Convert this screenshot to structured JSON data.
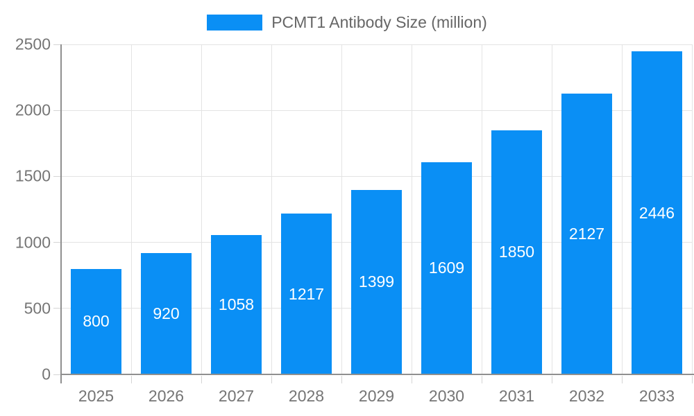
{
  "chart_data": {
    "type": "bar",
    "title": "PCMT1 Antibody Size (million)",
    "categories": [
      "2025",
      "2026",
      "2027",
      "2028",
      "2029",
      "2030",
      "2031",
      "2032",
      "2033"
    ],
    "values": [
      800,
      920,
      1058,
      1217,
      1399,
      1609,
      1850,
      2127,
      2446
    ],
    "series": [
      {
        "name": "PCMT1 Antibody Size (million)",
        "values": [
          800,
          920,
          1058,
          1217,
          1399,
          1609,
          1850,
          2127,
          2446
        ]
      }
    ],
    "xlabel": "",
    "ylabel": "",
    "ylim": [
      0,
      2500
    ],
    "yticks": [
      0,
      500,
      1000,
      1500,
      2000,
      2500
    ],
    "grid": true,
    "legend_position": "top",
    "value_labels_inside_bars": true,
    "bar_color": "#0a8ff5",
    "bar_label_color": "#ffffff",
    "axis_color": "#8f8f8f",
    "grid_color": "#e3e3e3",
    "tick_text_color": "#757575",
    "legend_text_color": "#666666"
  }
}
